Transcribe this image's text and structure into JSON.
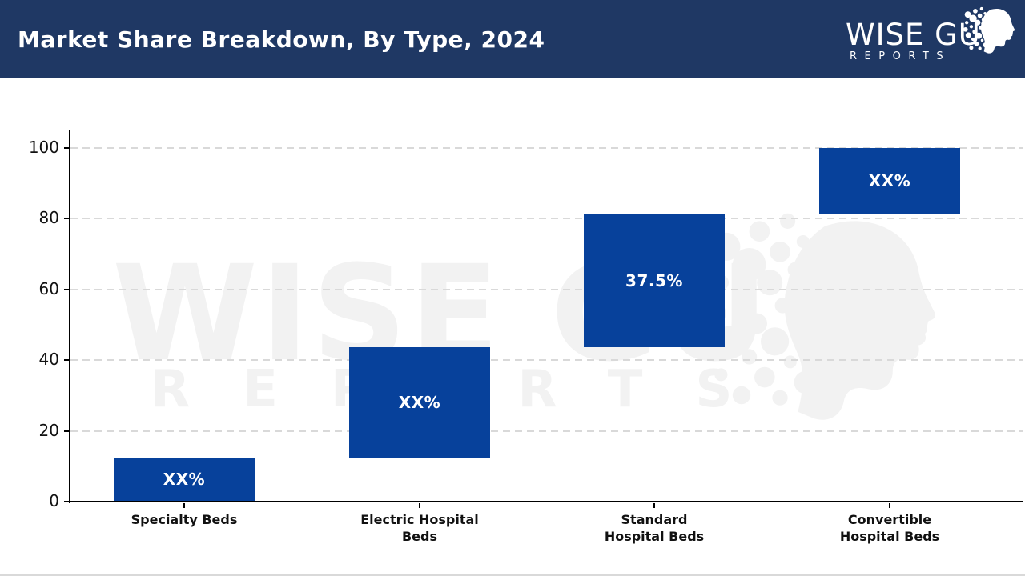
{
  "header": {
    "title": "Market Share Breakdown, By Type, 2024",
    "logo_line1": "WISE GUY",
    "logo_line2": "REPORTS"
  },
  "watermark": {
    "line1": "WISE GU",
    "line2": "REPORTS"
  },
  "icons": {
    "logo_face": "wiseguy-face-icon",
    "watermark_face": "watermark-face-icon"
  },
  "chart_data": {
    "type": "bar",
    "variant": "floating-waterfall-segments",
    "title": "Market Share Breakdown, By Type, 2024",
    "categories": [
      "Specialty Beds",
      "Electric Hospital Beds",
      "Standard Hospital Beds",
      "Convertible Hospital Beds"
    ],
    "segments": [
      {
        "category": "Specialty Beds",
        "start": 0,
        "end": 12.5,
        "label": "XX%"
      },
      {
        "category": "Electric Hospital Beds",
        "start": 12.5,
        "end": 43.75,
        "label": "XX%"
      },
      {
        "category": "Standard Hospital Beds",
        "start": 43.75,
        "end": 81.25,
        "label": "37.5%"
      },
      {
        "category": "Convertible Hospital Beds",
        "start": 81.25,
        "end": 100,
        "label": "XX%"
      }
    ],
    "yticks": [
      0,
      20,
      40,
      60,
      80,
      100
    ],
    "ylim": [
      0,
      105
    ],
    "xlabel": "",
    "ylabel": "",
    "grid": "horizontal-dashed",
    "legend": "none"
  },
  "colors": {
    "header_bg": "#1f3864",
    "bar": "#07419b",
    "bar_label": "#ffffff",
    "grid": "#d9d9d9",
    "axis": "#000000",
    "watermark": "#f2f2f2"
  }
}
